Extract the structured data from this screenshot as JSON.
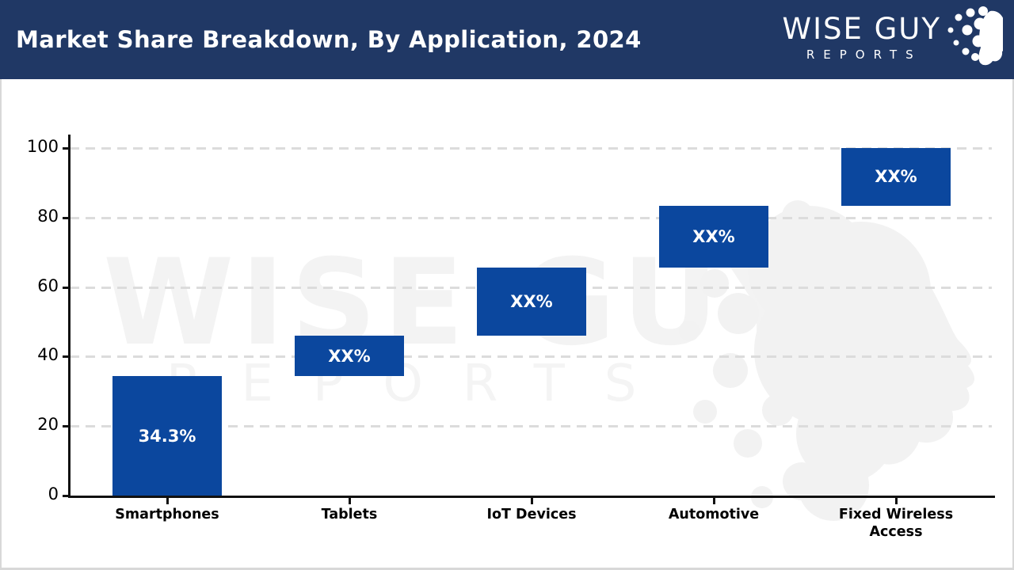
{
  "header": {
    "title": "Market Share Breakdown, By Application, 2024",
    "bg_color": "#203865",
    "logo": {
      "line1": "WISE GUY",
      "line2": "REPORTS"
    }
  },
  "watermark": {
    "line1": "WISE GUY",
    "line2": "REPORTS"
  },
  "chart_data": {
    "type": "bar",
    "subtype": "waterfall",
    "title": "Market Share Breakdown, By Application, 2024",
    "categories": [
      "Smartphones",
      "Tablets",
      "IoT Devices",
      "Automotive",
      "Fixed Wireless Access"
    ],
    "segments": [
      {
        "category": "Smartphones",
        "start": 0,
        "end": 34.3,
        "label": "34.3%"
      },
      {
        "category": "Tablets",
        "start": 34.3,
        "end": 46.0,
        "label": "XX%"
      },
      {
        "category": "IoT Devices",
        "start": 46.0,
        "end": 65.7,
        "label": "XX%"
      },
      {
        "category": "Automotive",
        "start": 65.7,
        "end": 83.4,
        "label": "XX%"
      },
      {
        "category": "Fixed Wireless Access",
        "start": 83.4,
        "end": 100,
        "label": "XX%"
      }
    ],
    "yticks": [
      0,
      20,
      40,
      60,
      80,
      100
    ],
    "ylim": [
      0,
      100
    ],
    "xlabel": "",
    "ylabel": "",
    "grid": "dashed-horizontal",
    "legend": "none",
    "bar_color": "#0b479e",
    "bar_label_color": "#ffffff",
    "axis_color": "#111111",
    "gridline_color": "#dcdcdc"
  }
}
